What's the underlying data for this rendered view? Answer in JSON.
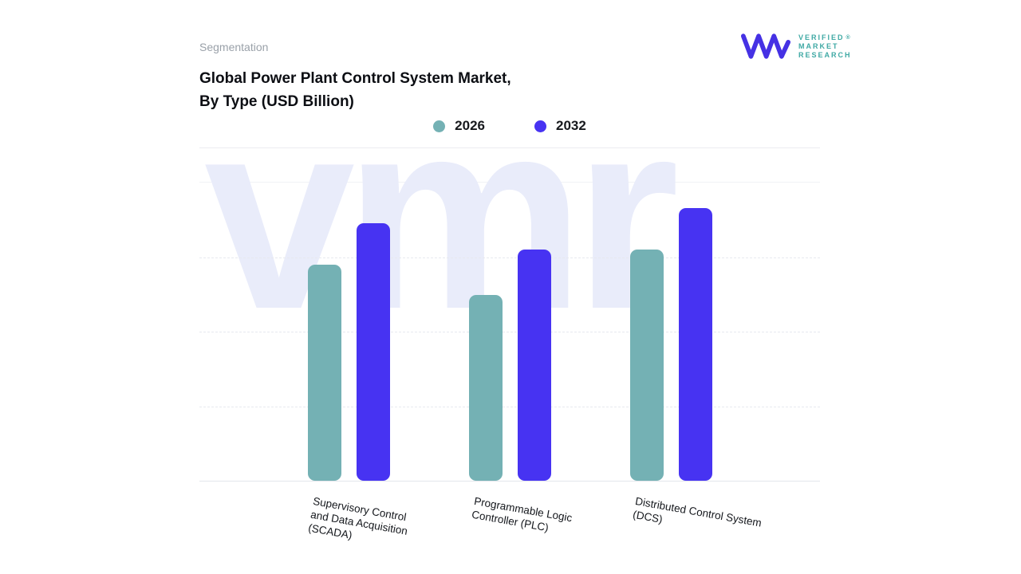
{
  "header": {
    "eyebrow": "Segmentation",
    "title_lines": [
      "Global Power Plant Control System Market,",
      "By Type (USD Billion)"
    ]
  },
  "logo": {
    "text_lines": [
      "VERIFIED",
      "MARKET",
      "RESEARCH"
    ],
    "registered": "®",
    "mark_color": "#4531e4",
    "text_color": "#3fa9a4"
  },
  "legend": {
    "items": [
      {
        "label": "2026",
        "color": "#74b1b4"
      },
      {
        "label": "2032",
        "color": "#4733f2"
      }
    ]
  },
  "watermark": {
    "text": "vmr",
    "color": "#e9ecfa"
  },
  "chart_data": {
    "type": "bar",
    "title": "Global Power Plant Control System Market, By Type (USD Billion)",
    "units": "USD Billion",
    "categories": [
      "Supervisory Control and Data Acquisition (SCADA)",
      "Programmable Logic Controller (PLC)",
      "Distributed Control System (DCS)"
    ],
    "tick_label_lines": [
      [
        "Supervisory Control",
        "and Data Acquisition",
        "(SCADA)"
      ],
      [
        "Programmable Logic",
        "Controller (PLC)"
      ],
      [
        "Distributed Control System",
        "(DCS)"
      ]
    ],
    "series": [
      {
        "name": "2026",
        "color": "#74b1b4",
        "values": [
          72,
          62,
          77
        ]
      },
      {
        "name": "2032",
        "color": "#4733f2",
        "values": [
          86,
          77,
          91
        ]
      }
    ],
    "ylim": [
      0,
      100
    ],
    "y_axis_labels_visible": false,
    "grid": "horizontal-dashed",
    "legend_position": "top-center"
  }
}
